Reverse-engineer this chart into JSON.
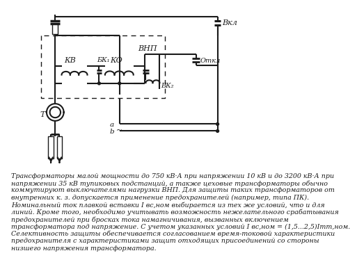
{
  "bg_color": "#ffffff",
  "line_color": "#1a1a1a",
  "text_color": "#1a1a1a",
  "body_text_lines": [
    "Трансформаторы малой мощности до 750 кВ·А при напряжении 10 кВ и до 3200 кВ·А при",
    "напряжении 35 кВ тупиковых подстанций, а также цеховые трансформаторы обычно",
    "коммутируют выключателями нагрузки ВНП. Для защиты таких трансформаторов от",
    "внутренних к. з. допускается применение предохранителей (например, типа ПК).",
    "Номинальный ток плавкой вставки I вс,ном выбирается из тех же условий, что и для",
    "линий. Кроме того, необходимо учитывать возможность нежелательного срабатывания",
    "предохранителей при бросках тока намагничивания, вызванных включением",
    "трансформатора под напряжение. С учетом указанных условий I вс,ном = (1,5...2,5)Iтm,ном.",
    "Селективность защиты обеспечивается согласованием время-токовой характеристики",
    "предохранителя с характеристиками защит отходящих присоединений со стороны",
    "низшего напряжения трансформатора."
  ],
  "font_size_body": 6.8,
  "font_size_label": 7.5,
  "font_size_small": 6.5
}
